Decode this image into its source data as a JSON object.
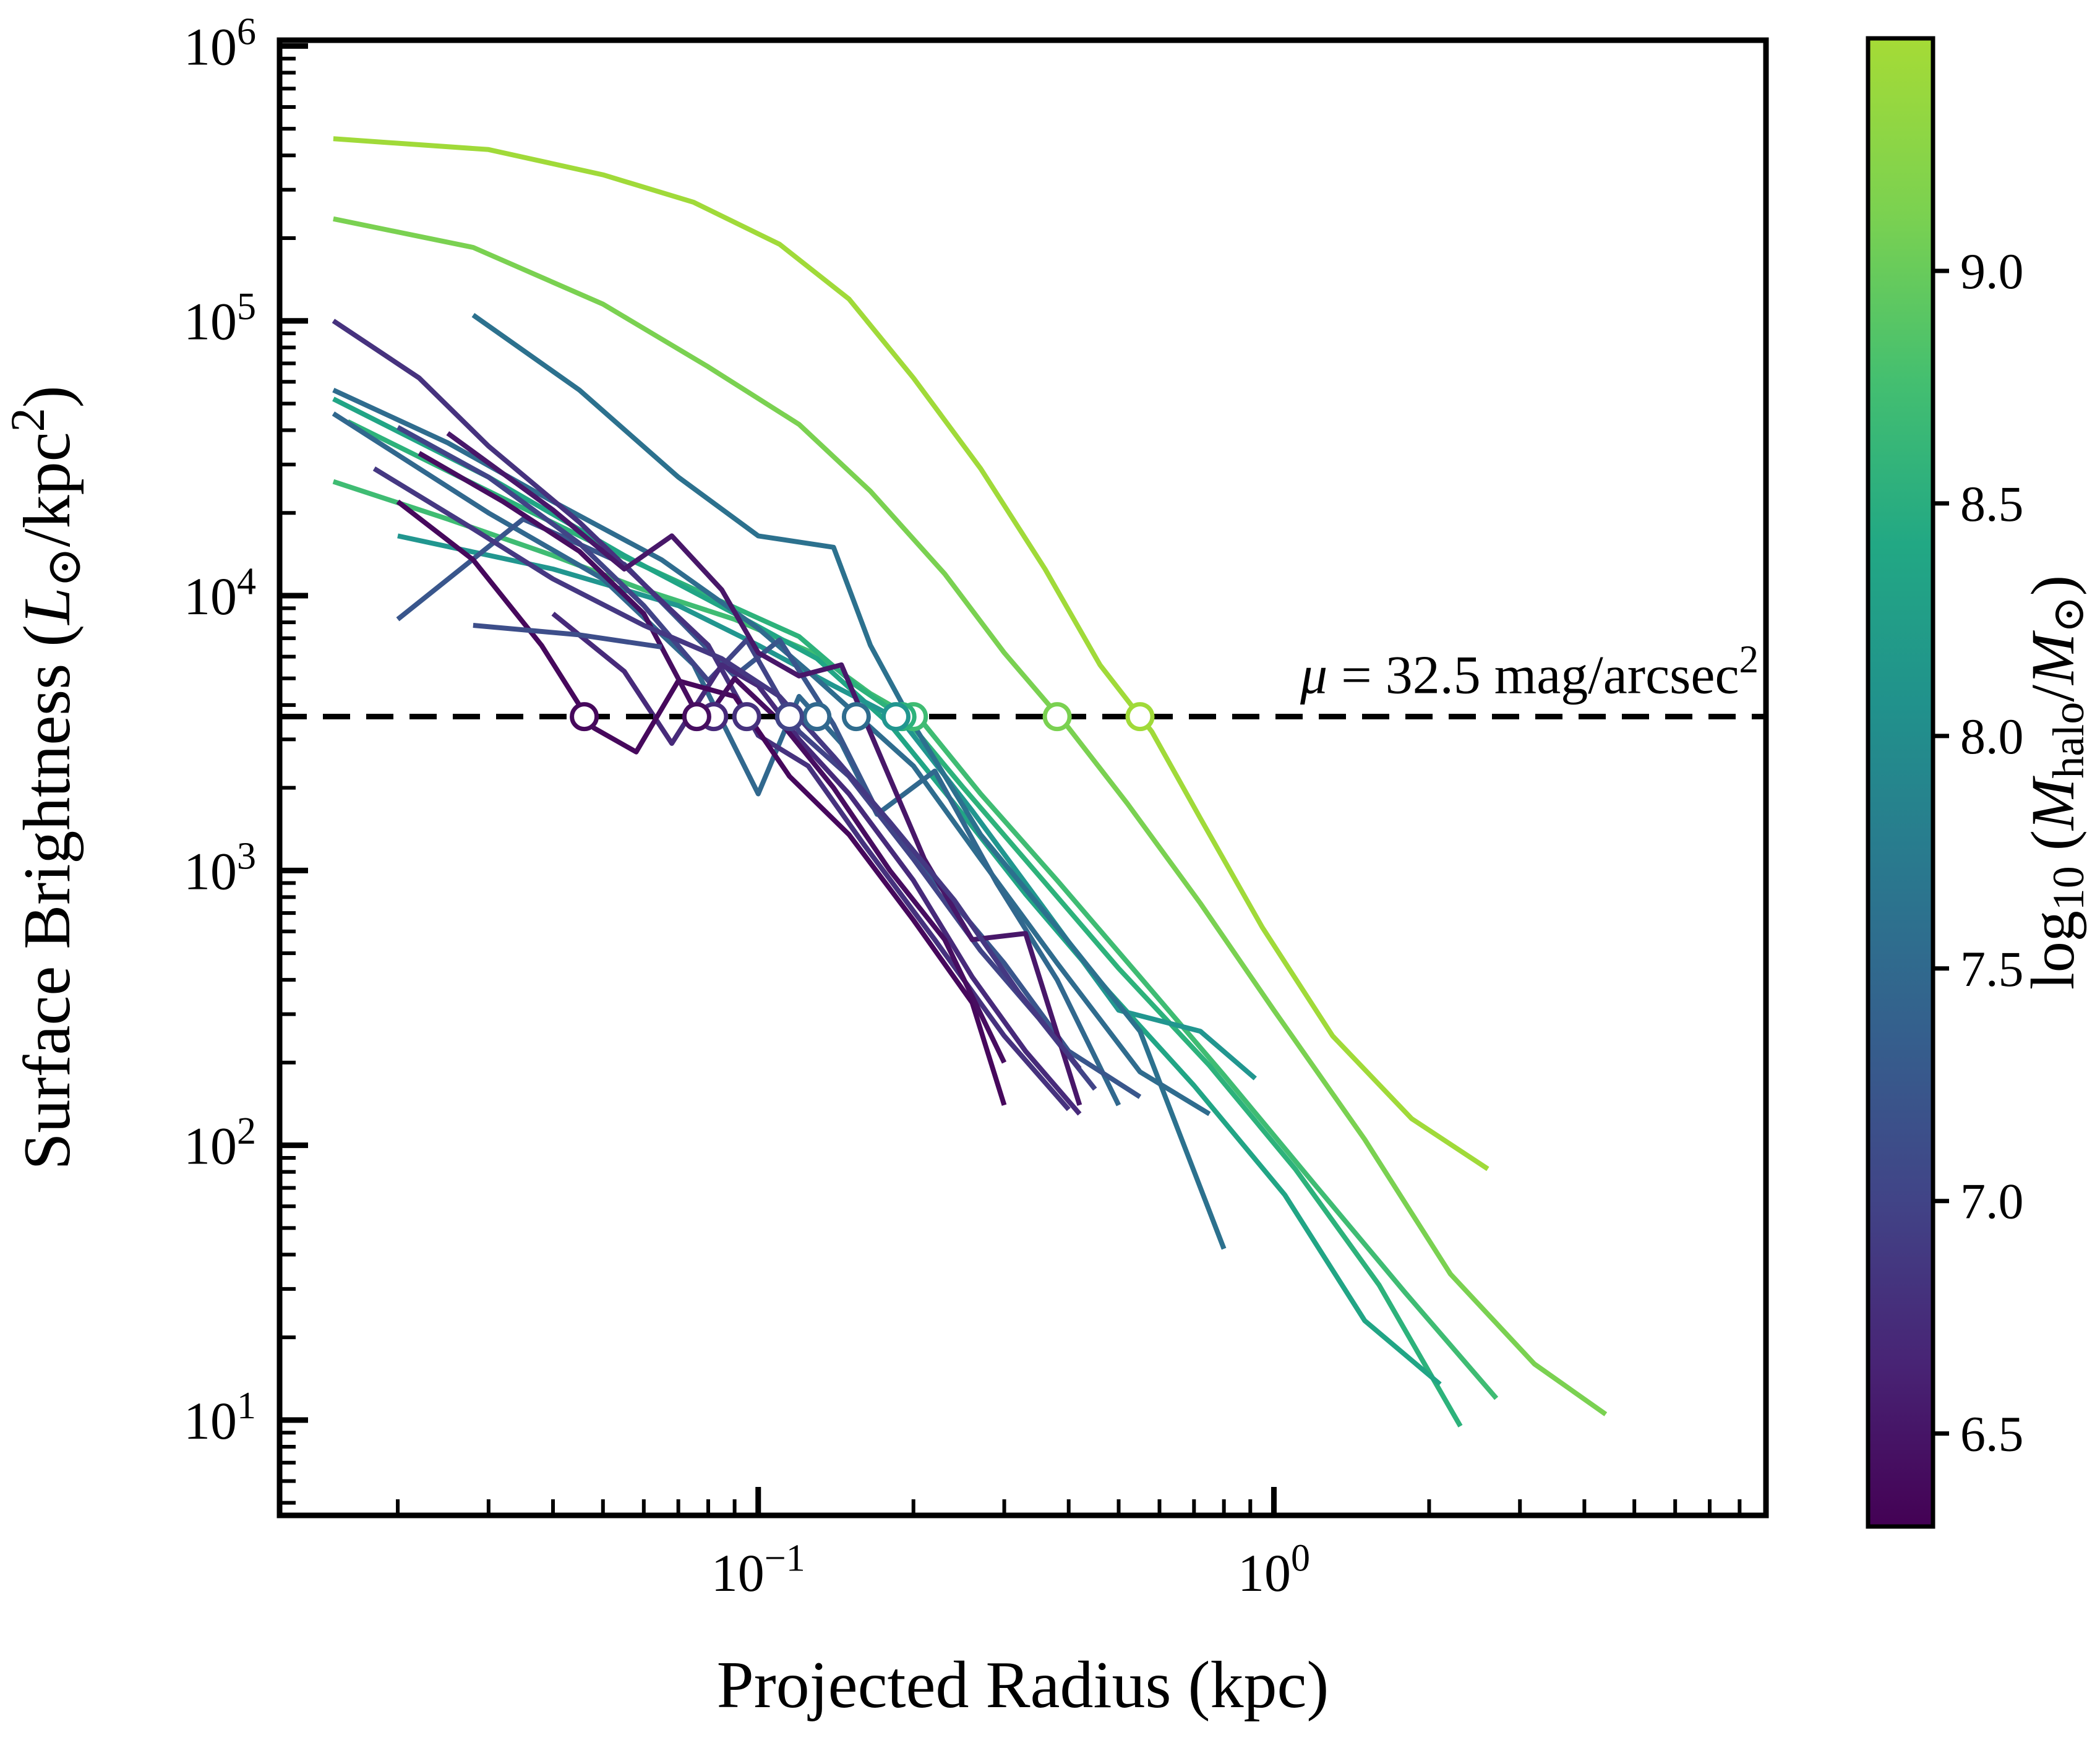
{
  "figure": {
    "background": "#ffffff"
  },
  "chart_data": {
    "type": "line",
    "title": "",
    "xscale": "log",
    "yscale": "log",
    "grid": false,
    "xlim": [
      0.0118,
      9.0
    ],
    "ylim": [
      4.5,
      1050000
    ],
    "xlabel_segments": [
      {
        "t": "Projected Radius (kpc)"
      }
    ],
    "ylabel_segments": [
      {
        "t": "Surface Brightness ("
      },
      {
        "t": "L",
        "i": 1
      },
      {
        "t": "⊙",
        "sub": 1
      },
      {
        "t": "/kpc"
      },
      {
        "t": "2",
        "sup": 1
      },
      {
        "t": ")"
      }
    ],
    "x_major_ticks": [
      {
        "value": 0.1,
        "base": "10",
        "exp": "−1"
      },
      {
        "value": 1.0,
        "base": "10",
        "exp": "0"
      }
    ],
    "y_major_ticks": [
      {
        "value": 10,
        "base": "10",
        "exp": "1"
      },
      {
        "value": 100,
        "base": "10",
        "exp": "2"
      },
      {
        "value": 1000,
        "base": "10",
        "exp": "3"
      },
      {
        "value": 10000,
        "base": "10",
        "exp": "4"
      },
      {
        "value": 100000,
        "base": "10",
        "exp": "5"
      },
      {
        "value": 1000000,
        "base": "10",
        "exp": "6"
      }
    ],
    "mu_line": {
      "y": 3630,
      "style": "dashed",
      "color": "#000000",
      "annotation_segments": [
        {
          "t": "μ",
          "i": 1
        },
        {
          "t": " = 32.5 mag/arcsec"
        },
        {
          "t": "2",
          "sup": 1
        }
      ]
    },
    "series": [
      {
        "log_mhalo": 9.4,
        "color": "#a0da39",
        "cross_x": 0.55,
        "points": [
          [
            0.015,
            460000.0
          ],
          [
            0.03,
            420000.0
          ],
          [
            0.05,
            340000.0
          ],
          [
            0.075,
            270000.0
          ],
          [
            0.11,
            190000.0
          ],
          [
            0.15,
            120000.0
          ],
          [
            0.2,
            62000.0
          ],
          [
            0.27,
            29000.0
          ],
          [
            0.36,
            12500.0
          ],
          [
            0.46,
            5600.0
          ],
          [
            0.58,
            3200.0
          ],
          [
            0.72,
            1550.0
          ],
          [
            0.95,
            620.0
          ],
          [
            1.3,
            250.0
          ],
          [
            1.85,
            125.0
          ],
          [
            2.6,
            82.0
          ]
        ]
      },
      {
        "log_mhalo": 9.15,
        "color": "#7ad151",
        "cross_x": 0.38,
        "points": [
          [
            0.015,
            235000.0
          ],
          [
            0.028,
            185000.0
          ],
          [
            0.05,
            115000.0
          ],
          [
            0.08,
            68000.0
          ],
          [
            0.12,
            42000.0
          ],
          [
            0.165,
            24000.0
          ],
          [
            0.23,
            12000.0
          ],
          [
            0.3,
            6200.0
          ],
          [
            0.4,
            3300.0
          ],
          [
            0.52,
            1750.0
          ],
          [
            0.72,
            760.0
          ],
          [
            1.0,
            310.0
          ],
          [
            1.5,
            105.0
          ],
          [
            2.2,
            34.0
          ],
          [
            3.2,
            16.0
          ],
          [
            4.4,
            10.5
          ]
        ]
      },
      {
        "log_mhalo": 8.85,
        "color": "#3fbc73",
        "cross_x": 0.2,
        "points": [
          [
            0.015,
            26000.0
          ],
          [
            0.025,
            19000.0
          ],
          [
            0.04,
            14000.0
          ],
          [
            0.06,
            10500.0
          ],
          [
            0.09,
            8200.0
          ],
          [
            0.13,
            6100.0
          ],
          [
            0.165,
            4400.0
          ],
          [
            0.21,
            3400.0
          ],
          [
            0.27,
            1900.0
          ],
          [
            0.38,
            920.0
          ],
          [
            0.55,
            410.0
          ],
          [
            0.8,
            180.0
          ],
          [
            1.2,
            72.0
          ],
          [
            1.8,
            29.0
          ],
          [
            2.7,
            12.0
          ]
        ]
      },
      {
        "log_mhalo": 8.7,
        "color": "#2db27b",
        "cross_x": 0.19,
        "points": [
          [
            0.016,
            43000.0
          ],
          [
            0.03,
            24000.0
          ],
          [
            0.05,
            15000.0
          ],
          [
            0.08,
            10000.0
          ],
          [
            0.12,
            7100.0
          ],
          [
            0.155,
            4700.0
          ],
          [
            0.195,
            3500.0
          ],
          [
            0.25,
            2000.0
          ],
          [
            0.35,
            960.0
          ],
          [
            0.5,
            440.0
          ],
          [
            0.75,
            195.0
          ],
          [
            1.1,
            82.0
          ],
          [
            1.6,
            31.0
          ],
          [
            2.3,
            9.5
          ]
        ]
      },
      {
        "log_mhalo": 8.55,
        "color": "#21a585",
        "cross_x": null,
        "points": [
          [
            0.015,
            52000.0
          ],
          [
            0.03,
            27000.0
          ],
          [
            0.055,
            14000.0
          ],
          [
            0.09,
            8600.0
          ],
          [
            0.13,
            5900.0
          ],
          [
            0.18,
            3400.0
          ],
          [
            0.24,
            1750.0
          ],
          [
            0.33,
            820.0
          ],
          [
            0.48,
            360.0
          ],
          [
            0.7,
            165.0
          ],
          [
            1.05,
            66.0
          ],
          [
            1.5,
            23.0
          ],
          [
            2.1,
            13.5
          ]
        ]
      },
      {
        "log_mhalo": 8.35,
        "color": "#21968f",
        "cross_x": 0.185,
        "points": [
          [
            0.02,
            16500.0
          ],
          [
            0.04,
            12500.0
          ],
          [
            0.07,
            9200.0
          ],
          [
            0.1,
            6600.0
          ],
          [
            0.14,
            4700.0
          ],
          [
            0.19,
            3500.0
          ],
          [
            0.26,
            1650.0
          ],
          [
            0.36,
            720.0
          ],
          [
            0.5,
            310.0
          ],
          [
            0.72,
            260.0
          ],
          [
            0.92,
            175.0
          ]
        ]
      },
      {
        "log_mhalo": 7.65,
        "color": "#2c718e",
        "cross_x": null,
        "points": [
          [
            0.028,
            105000.0
          ],
          [
            0.045,
            56000.0
          ],
          [
            0.07,
            27000.0
          ],
          [
            0.1,
            16500.0
          ],
          [
            0.14,
            15000.0
          ],
          [
            0.165,
            6600.0
          ],
          [
            0.2,
            3400.0
          ],
          [
            0.27,
            1350.0
          ],
          [
            0.38,
            620.0
          ],
          [
            0.55,
            260.0
          ],
          [
            0.8,
            42.0
          ]
        ]
      },
      {
        "log_mhalo": 7.6,
        "color": "#2f6c8e",
        "cross_x": 0.155,
        "points": [
          [
            0.015,
            56000.0
          ],
          [
            0.025,
            36000.0
          ],
          [
            0.04,
            22000.0
          ],
          [
            0.065,
            13500.0
          ],
          [
            0.1,
            7600.0
          ],
          [
            0.128,
            5100.0
          ],
          [
            0.16,
            3500.0
          ],
          [
            0.2,
            2400.0
          ],
          [
            0.27,
            1100.0
          ],
          [
            0.38,
            460.0
          ],
          [
            0.55,
            185.0
          ],
          [
            0.75,
            130.0
          ]
        ]
      },
      {
        "log_mhalo": 7.55,
        "color": "#31688e",
        "cross_x": 0.13,
        "points": [
          [
            0.015,
            46000.0
          ],
          [
            0.03,
            20000.0
          ],
          [
            0.05,
            11500.0
          ],
          [
            0.075,
            5600.0
          ],
          [
            0.1,
            1900.0
          ],
          [
            0.12,
            4300.0
          ],
          [
            0.145,
            2900.0
          ],
          [
            0.17,
            1600.0
          ],
          [
            0.22,
            2300.0
          ],
          [
            0.29,
            900.0
          ],
          [
            0.38,
            400.0
          ],
          [
            0.5,
            140.0
          ]
        ]
      },
      {
        "log_mhalo": 7.25,
        "color": "#39568c",
        "cross_x": null,
        "points": [
          [
            0.02,
            8200.0
          ],
          [
            0.035,
            19000.0
          ],
          [
            0.055,
            13000.0
          ],
          [
            0.075,
            7200.0
          ],
          [
            0.09,
            5100.0
          ],
          [
            0.11,
            6900.0
          ],
          [
            0.14,
            3400.0
          ],
          [
            0.17,
            1650.0
          ],
          [
            0.22,
            920.0
          ],
          [
            0.3,
            460.0
          ],
          [
            0.4,
            220.0
          ],
          [
            0.55,
            150.0
          ]
        ]
      },
      {
        "log_mhalo": 7.0,
        "color": "#414487",
        "cross_x": 0.115,
        "points": [
          [
            0.02,
            41000.0
          ],
          [
            0.03,
            27000.0
          ],
          [
            0.045,
            15500.0
          ],
          [
            0.06,
            9200.0
          ],
          [
            0.08,
            4900.0
          ],
          [
            0.095,
            6900.0
          ],
          [
            0.12,
            3200.0
          ],
          [
            0.15,
            2200.0
          ],
          [
            0.2,
            1100.0
          ],
          [
            0.27,
            510.0
          ],
          [
            0.35,
            290.0
          ],
          [
            0.45,
            160.0
          ]
        ]
      },
      {
        "log_mhalo": 6.85,
        "color": "#46327e",
        "cross_x": 0.095,
        "points": [
          [
            0.015,
            100000.0
          ],
          [
            0.022,
            62000.0
          ],
          [
            0.03,
            35000.0
          ],
          [
            0.045,
            18500.0
          ],
          [
            0.06,
            11000.0
          ],
          [
            0.08,
            6600.0
          ],
          [
            0.1,
            3100.0
          ],
          [
            0.125,
            2400.0
          ],
          [
            0.16,
            1250.0
          ],
          [
            0.22,
            560.0
          ],
          [
            0.3,
            250.0
          ],
          [
            0.4,
            135.0
          ]
        ]
      },
      {
        "log_mhalo": 6.75,
        "color": "#472a7a",
        "cross_x": 0.082,
        "points": [
          [
            0.04,
            8600.0
          ],
          [
            0.055,
            5300.0
          ],
          [
            0.068,
            2900.0
          ],
          [
            0.085,
            5600.0
          ],
          [
            0.1,
            4700.0
          ],
          [
            0.12,
            3000.0
          ],
          [
            0.15,
            1900.0
          ],
          [
            0.2,
            920.0
          ],
          [
            0.26,
            410.0
          ],
          [
            0.33,
            220.0
          ],
          [
            0.42,
            130.0
          ]
        ]
      },
      {
        "log_mhalo": 6.5,
        "color": "#481769",
        "cross_x": null,
        "points": [
          [
            0.025,
            39000.0
          ],
          [
            0.04,
            20500.0
          ],
          [
            0.055,
            12500.0
          ],
          [
            0.068,
            16500.0
          ],
          [
            0.085,
            10500.0
          ],
          [
            0.1,
            6200.0
          ],
          [
            0.12,
            5100.0
          ],
          [
            0.145,
            5600.0
          ],
          [
            0.175,
            2450.0
          ],
          [
            0.21,
            1100.0
          ],
          [
            0.26,
            560.0
          ],
          [
            0.33,
            590.0
          ],
          [
            0.42,
            140.0
          ]
        ]
      },
      {
        "log_mhalo": 6.35,
        "color": "#46085c",
        "cross_x": 0.046,
        "points": [
          [
            0.02,
            22000.0
          ],
          [
            0.028,
            13500.0
          ],
          [
            0.038,
            6600.0
          ],
          [
            0.048,
            3300.0
          ],
          [
            0.058,
            2700.0
          ],
          [
            0.07,
            4900.0
          ],
          [
            0.09,
            4300.0
          ],
          [
            0.115,
            2200.0
          ],
          [
            0.15,
            1350.0
          ],
          [
            0.2,
            660.0
          ],
          [
            0.26,
            330.0
          ],
          [
            0.3,
            140.0
          ]
        ]
      },
      {
        "log_mhalo": 6.4,
        "color": "#470d60",
        "cross_x": 0.076,
        "points": [
          [
            0.022,
            33000.0
          ],
          [
            0.032,
            22000.0
          ],
          [
            0.045,
            14500.0
          ],
          [
            0.06,
            8600.0
          ],
          [
            0.078,
            3400.0
          ],
          [
            0.09,
            5000.0
          ],
          [
            0.11,
            3500.0
          ],
          [
            0.14,
            2000.0
          ],
          [
            0.18,
            1000.0
          ],
          [
            0.23,
            560.0
          ],
          [
            0.3,
            200.0
          ]
        ]
      },
      {
        "log_mhalo": 6.9,
        "color": "#453882",
        "cross_x": null,
        "points": [
          [
            0.018,
            29000.0
          ],
          [
            0.028,
            17500.0
          ],
          [
            0.04,
            11500.0
          ],
          [
            0.06,
            7800.0
          ],
          [
            0.085,
            5900.0
          ],
          [
            0.11,
            4300.0
          ],
          [
            0.14,
            2600.0
          ],
          [
            0.18,
            1500.0
          ],
          [
            0.24,
            780.0
          ],
          [
            0.32,
            360.0
          ],
          [
            0.42,
            190.0
          ]
        ]
      },
      {
        "log_mhalo": 7.15,
        "color": "#3d4e8a",
        "cross_x": null,
        "points": [
          [
            0.028,
            7800.0
          ],
          [
            0.045,
            7200.0
          ],
          [
            0.065,
            6500.0
          ]
        ]
      }
    ],
    "colorbar": {
      "vmin": 6.3,
      "vmax": 9.5,
      "ticks": [
        {
          "value": 6.5,
          "label": "6.5"
        },
        {
          "value": 7.0,
          "label": "7.0"
        },
        {
          "value": 7.5,
          "label": "7.5"
        },
        {
          "value": 8.0,
          "label": "8.0"
        },
        {
          "value": 8.5,
          "label": "8.5"
        },
        {
          "value": 9.0,
          "label": "9.0"
        }
      ],
      "label_segments": [
        {
          "t": "log"
        },
        {
          "t": "10",
          "sub": 1
        },
        {
          "t": " ("
        },
        {
          "t": "M",
          "i": 1
        },
        {
          "t": "halo",
          "sub": 1
        },
        {
          "t": "/"
        },
        {
          "t": "M",
          "i": 1
        },
        {
          "t": "⊙",
          "sub": 1
        },
        {
          "t": ")"
        }
      ],
      "gradient": [
        {
          "offset": 0.0,
          "color": "#440154"
        },
        {
          "offset": 0.11,
          "color": "#482475"
        },
        {
          "offset": 0.22,
          "color": "#414487"
        },
        {
          "offset": 0.33,
          "color": "#355f8d"
        },
        {
          "offset": 0.44,
          "color": "#2a788e"
        },
        {
          "offset": 0.55,
          "color": "#21918c"
        },
        {
          "offset": 0.66,
          "color": "#22a884"
        },
        {
          "offset": 0.77,
          "color": "#44bf70"
        },
        {
          "offset": 0.88,
          "color": "#7ad151"
        },
        {
          "offset": 1.0,
          "color": "#a5db36"
        }
      ]
    }
  }
}
